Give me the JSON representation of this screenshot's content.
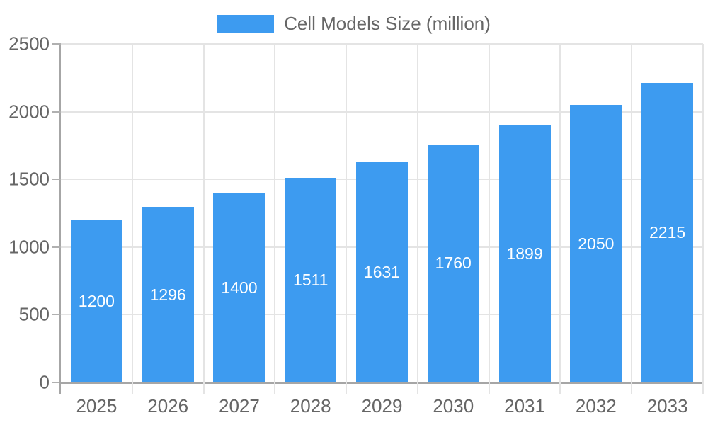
{
  "colors": {
    "bar": "#3D9BF0",
    "grid": "#E4E4E4",
    "axis": "#A6A6A6",
    "text": "#666666",
    "value_label": "#FFFFFF"
  },
  "chart_data": {
    "type": "bar",
    "categories": [
      "2025",
      "2026",
      "2027",
      "2028",
      "2029",
      "2030",
      "2031",
      "2032",
      "2033"
    ],
    "values": [
      1200,
      1296,
      1400,
      1511,
      1631,
      1760,
      1899,
      2050,
      2215
    ],
    "title": "",
    "legend_label": "Cell Models Size (million)",
    "xlabel": "",
    "ylabel": "",
    "ylim": [
      0,
      2500
    ],
    "yticks": [
      0,
      500,
      1000,
      1500,
      2000,
      2500
    ],
    "grid": true,
    "legend_position": "top",
    "value_labels": "inside-center"
  }
}
